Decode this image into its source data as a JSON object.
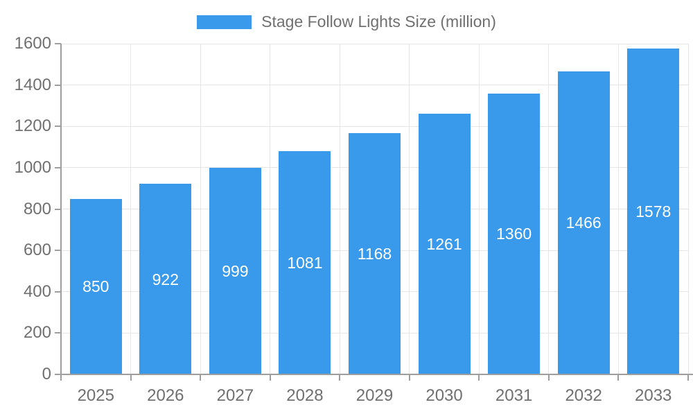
{
  "chart_data": {
    "type": "bar",
    "title": "Stage Follow Lights Size (million)",
    "legend": [
      "Stage Follow Lights Size (million)"
    ],
    "legend_position": "top",
    "categories": [
      "2025",
      "2026",
      "2027",
      "2028",
      "2029",
      "2030",
      "2031",
      "2032",
      "2033"
    ],
    "values": [
      850,
      922,
      999,
      1081,
      1168,
      1261,
      1360,
      1466,
      1578
    ],
    "bar_value_labels": [
      "850",
      "922",
      "999",
      "1081",
      "1168",
      "1261",
      "1360",
      "1466",
      "1578"
    ],
    "xlabel": "",
    "ylabel": "",
    "ylim": [
      0,
      1600
    ],
    "yticks": [
      0,
      200,
      400,
      600,
      800,
      1000,
      1200,
      1400,
      1600
    ],
    "grid": true,
    "colors": {
      "bar": "#3999EB",
      "bar_label_text": "#FFFFFF",
      "axis_line": "#9E9E9E",
      "gridline": "#E6E6E6",
      "tick_text": "#707070",
      "background": "#FFFFFF"
    }
  }
}
